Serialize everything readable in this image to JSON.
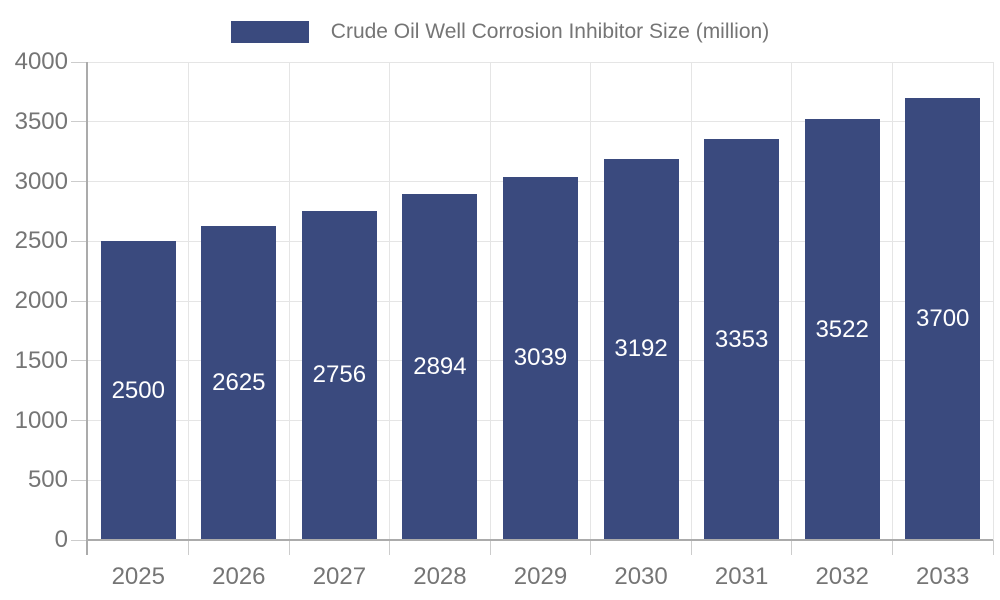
{
  "chart_data": {
    "type": "bar",
    "title": "",
    "categories": [
      "2025",
      "2026",
      "2027",
      "2028",
      "2029",
      "2030",
      "2031",
      "2032",
      "2033"
    ],
    "series": [
      {
        "name": "Crude Oil Well Corrosion Inhibitor Size (million)",
        "values": [
          2500,
          2625,
          2756,
          2894,
          3039,
          3192,
          3353,
          3522,
          3700
        ]
      }
    ],
    "xlabel": "",
    "ylabel": "",
    "ylim": [
      0,
      4000
    ],
    "yticks": [
      0,
      500,
      1000,
      1500,
      2000,
      2500,
      3000,
      3500,
      4000
    ],
    "grid": true,
    "legend_position": "top-center",
    "value_labels": "inside-center",
    "colors": {
      "bar": "#3A4A7E",
      "axis_text": "#757575",
      "grid_line": "#E5E5E5",
      "axis_line": "#ABABAB",
      "tick_line": "#CCCCCC",
      "value_label": "#FFFFFF",
      "background": "#FFFFFF"
    }
  }
}
